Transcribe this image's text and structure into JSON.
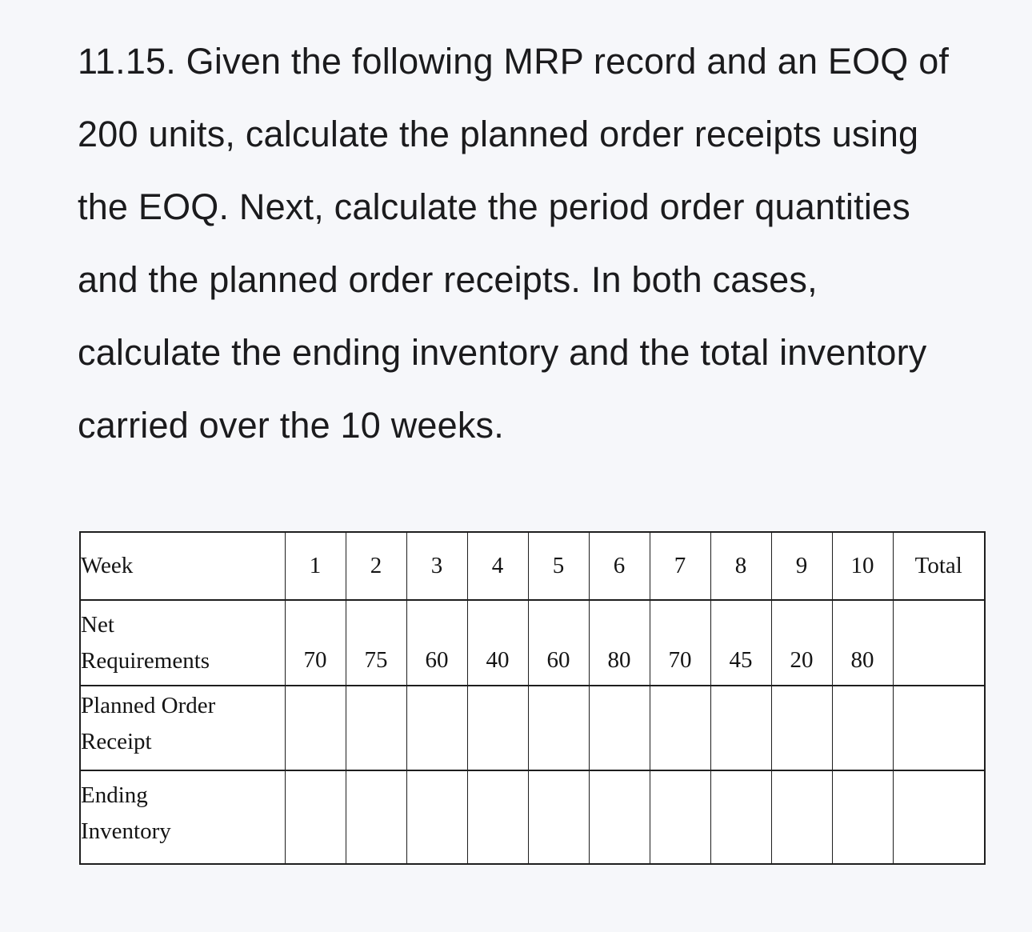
{
  "page": {
    "background": "#f6f7fa",
    "text_color": "#1b1b1d",
    "table_border_color": "#1e1e1e",
    "table_background": "#ffffff"
  },
  "problem": {
    "lines": [
      "11.15. Given the following MRP record and an EOQ of",
      "200 units, calculate the planned order receipts using",
      "the EOQ. Next, calculate the period order quantities",
      "and the planned order receipts. In both cases,",
      "calculate the ending inventory and the total inventory",
      "carried over the 10 weeks."
    ]
  },
  "table": {
    "header": {
      "row_label": "Week",
      "weeks": [
        "1",
        "2",
        "3",
        "4",
        "5",
        "6",
        "7",
        "8",
        "9",
        "10"
      ],
      "total_label": "Total"
    },
    "rows": [
      {
        "key": "netreq",
        "label_lines": [
          "Net",
          "Requirements"
        ],
        "values": [
          "70",
          "75",
          "60",
          "40",
          "60",
          "80",
          "70",
          "45",
          "20",
          "80"
        ],
        "total": ""
      },
      {
        "key": "por",
        "label_lines": [
          "Planned Order",
          "Receipt"
        ],
        "values": [
          "",
          "",
          "",
          "",
          "",
          "",
          "",
          "",
          "",
          ""
        ],
        "total": ""
      },
      {
        "key": "endinv",
        "label_lines": [
          "Ending",
          "Inventory"
        ],
        "values": [
          "",
          "",
          "",
          "",
          "",
          "",
          "",
          "",
          "",
          ""
        ],
        "total": ""
      }
    ]
  }
}
